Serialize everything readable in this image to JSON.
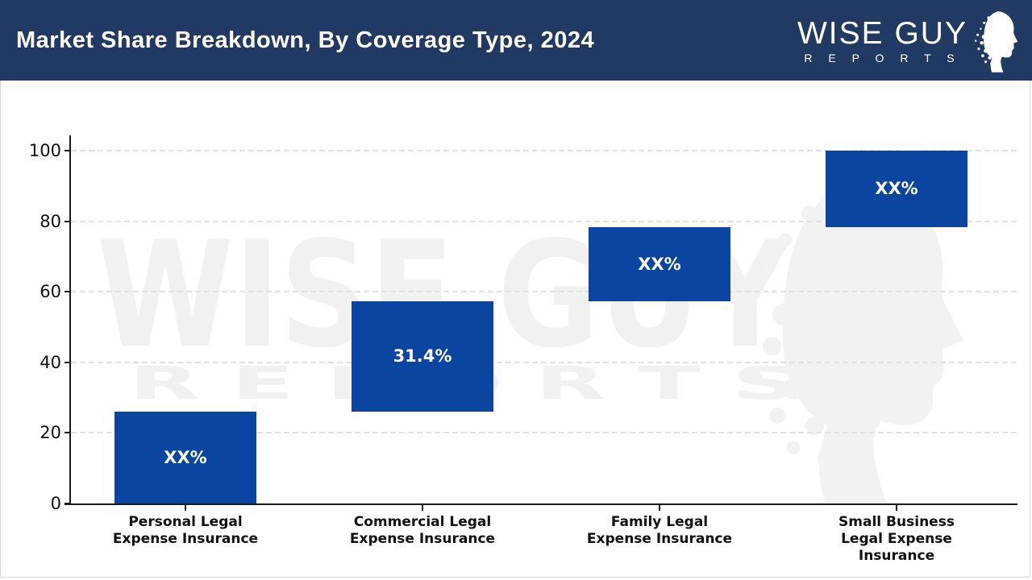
{
  "header": {
    "title": "Market Share Breakdown, By Coverage Type, 2024",
    "logo_line1": "WISE GUY",
    "logo_line2": "R E P O R T S",
    "bg_color": "#213a64"
  },
  "watermark": {
    "line1": "WISE GUY",
    "line2": "R E P O R T S"
  },
  "chart_data": {
    "type": "bar",
    "subtype": "waterfall-floating-bars",
    "title": "Market Share Breakdown, By Coverage Type, 2024",
    "xlabel": "",
    "ylabel": "",
    "ylim": [
      0,
      100
    ],
    "yticks": [
      0,
      20,
      40,
      60,
      80,
      100
    ],
    "grid": "horizontal-dashed",
    "legend": "none",
    "bar_color": "#0a45a1",
    "value_label_color": "#ffffff",
    "categories": [
      [
        "Personal Legal",
        "Expense Insurance"
      ],
      [
        "Commercial Legal",
        "Expense Insurance"
      ],
      [
        "Family Legal",
        "Expense Insurance"
      ],
      [
        "Small Business",
        "Legal Expense",
        "Insurance"
      ]
    ],
    "segments": [
      {
        "category": "Personal Legal Expense Insurance",
        "start": 0,
        "end": 26,
        "value": 26,
        "value_label": "XX%"
      },
      {
        "category": "Commercial Legal Expense Insurance",
        "start": 26,
        "end": 57.4,
        "value": 31.4,
        "value_label": "31.4%"
      },
      {
        "category": "Family Legal Expense Insurance",
        "start": 57.4,
        "end": 78.4,
        "value": 21,
        "value_label": "XX%"
      },
      {
        "category": "Small Business Legal Expense Insurance",
        "start": 78.4,
        "end": 100,
        "value": 21.6,
        "value_label": "XX%"
      }
    ]
  }
}
